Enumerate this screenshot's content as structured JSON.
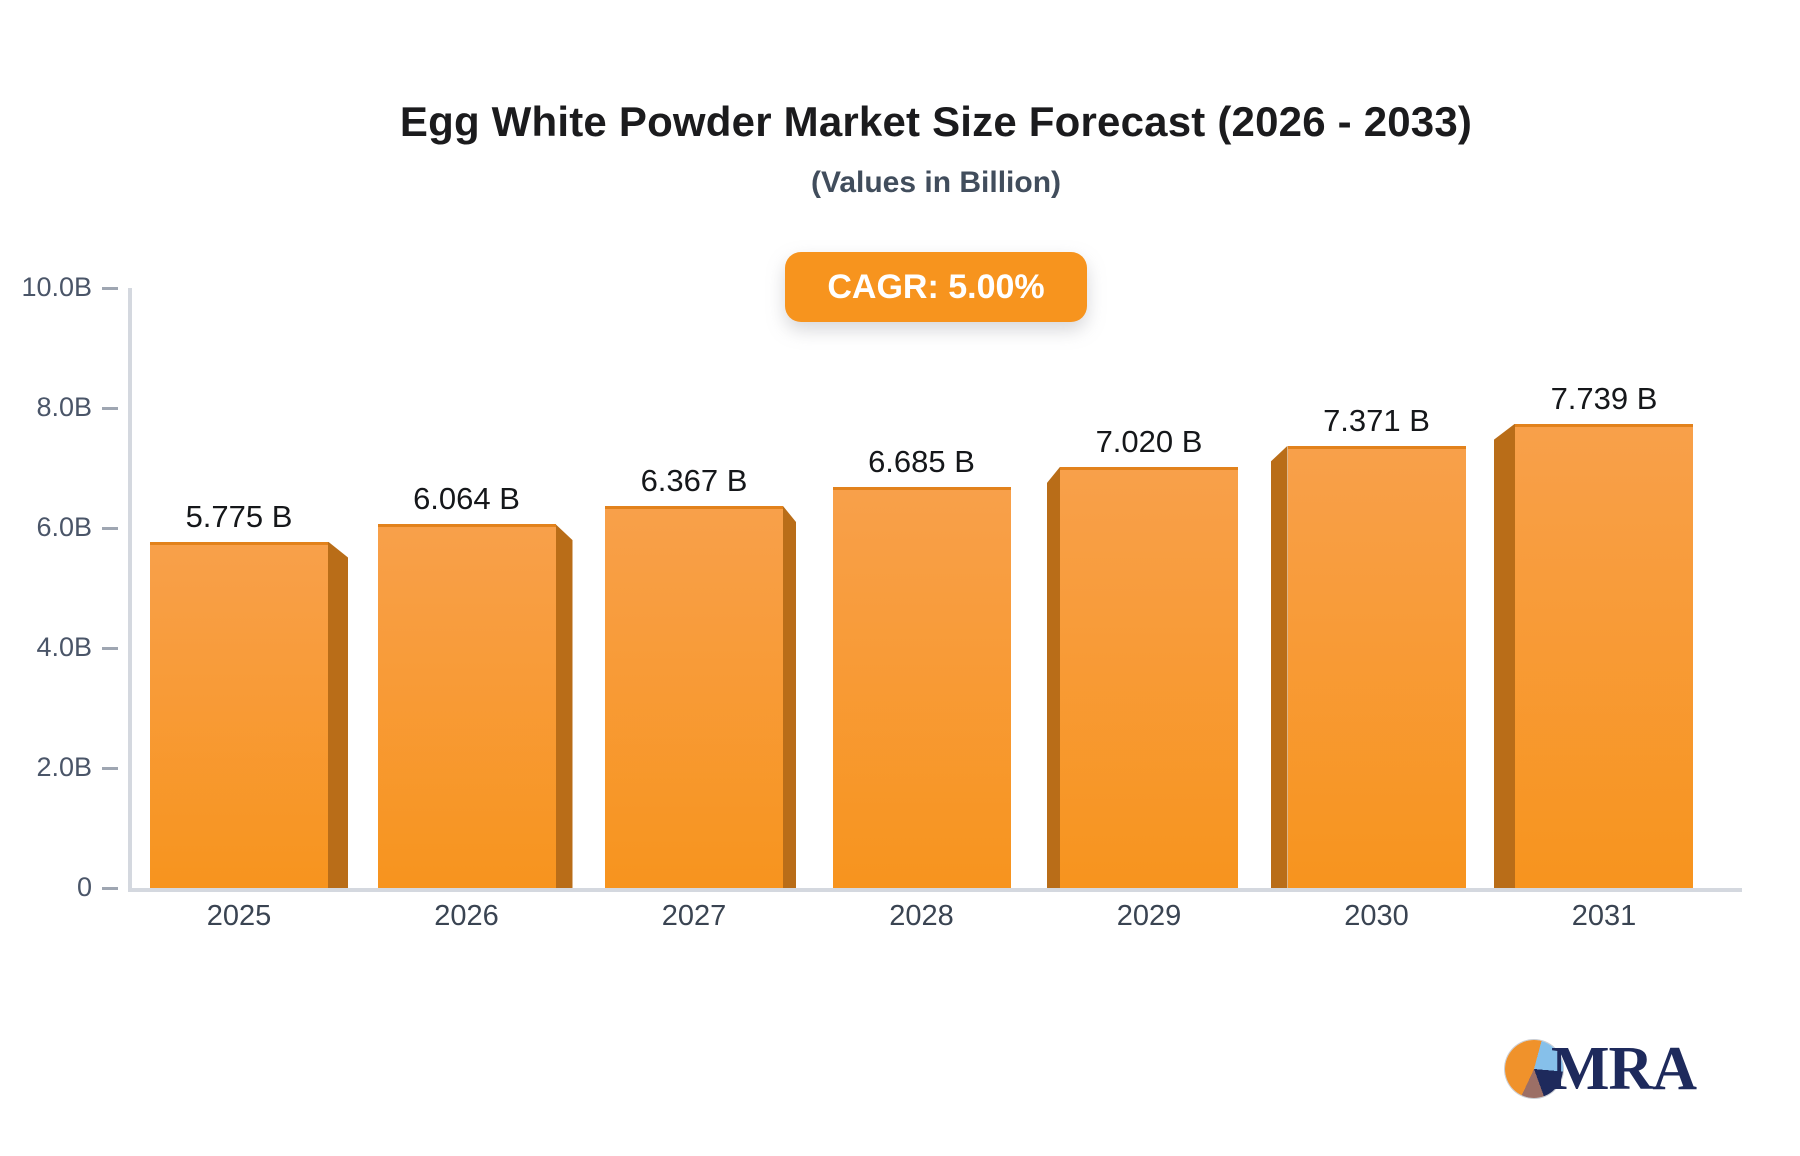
{
  "header": {
    "title": "Egg White Powder Market Size Forecast (2026 - 2033)",
    "subtitle": "(Values in Billion)"
  },
  "badge": {
    "label": "CAGR: 5.00%"
  },
  "logo": {
    "text": "MRA",
    "icon": "pie-chart-icon"
  },
  "colors": {
    "title_color": "#1b1b1d",
    "subtitle_color": "#414d5c",
    "badge_bg": "#f7941e",
    "bar_face_top": "#f8a04a",
    "bar_face_bottom": "#f7941e",
    "bar_edge": "#e2821c",
    "bar_side": "#b96d18",
    "axis_color": "#d4d8df",
    "tick_color": "#9fa6b2",
    "tick_label_color": "#4a5568",
    "year_label_color": "#3a4452",
    "value_label_color": "#15171a",
    "logo_navy": "#1e2a5c",
    "logo_orange": "#f0922b",
    "logo_blue": "#86c0ea",
    "logo_brown": "#9c6f66"
  },
  "chart_data": {
    "type": "bar",
    "title": "Egg White Powder Market Size Forecast (2026 - 2033)",
    "subtitle": "(Values in Billion)",
    "annotation": "CAGR: 5.00%",
    "categories": [
      "2025",
      "2026",
      "2027",
      "2028",
      "2029",
      "2030",
      "2031"
    ],
    "values": [
      5.775,
      6.064,
      6.367,
      6.685,
      7.02,
      7.371,
      7.739
    ],
    "data_labels": [
      "5.775 B",
      "6.064 B",
      "6.367 B",
      "6.685 B",
      "7.020 B",
      "7.371 B",
      "7.739 B"
    ],
    "xlabel": "",
    "ylabel": "",
    "ylim": [
      0,
      10
    ],
    "ytick_values": [
      0,
      2,
      4,
      6,
      8,
      10
    ],
    "ytick_labels": [
      "0",
      "2.0B",
      "4.0B",
      "6.0B",
      "8.0B",
      "10.0B"
    ],
    "grid": false,
    "legend": false,
    "bar_style": "3d-perspective-orange"
  }
}
